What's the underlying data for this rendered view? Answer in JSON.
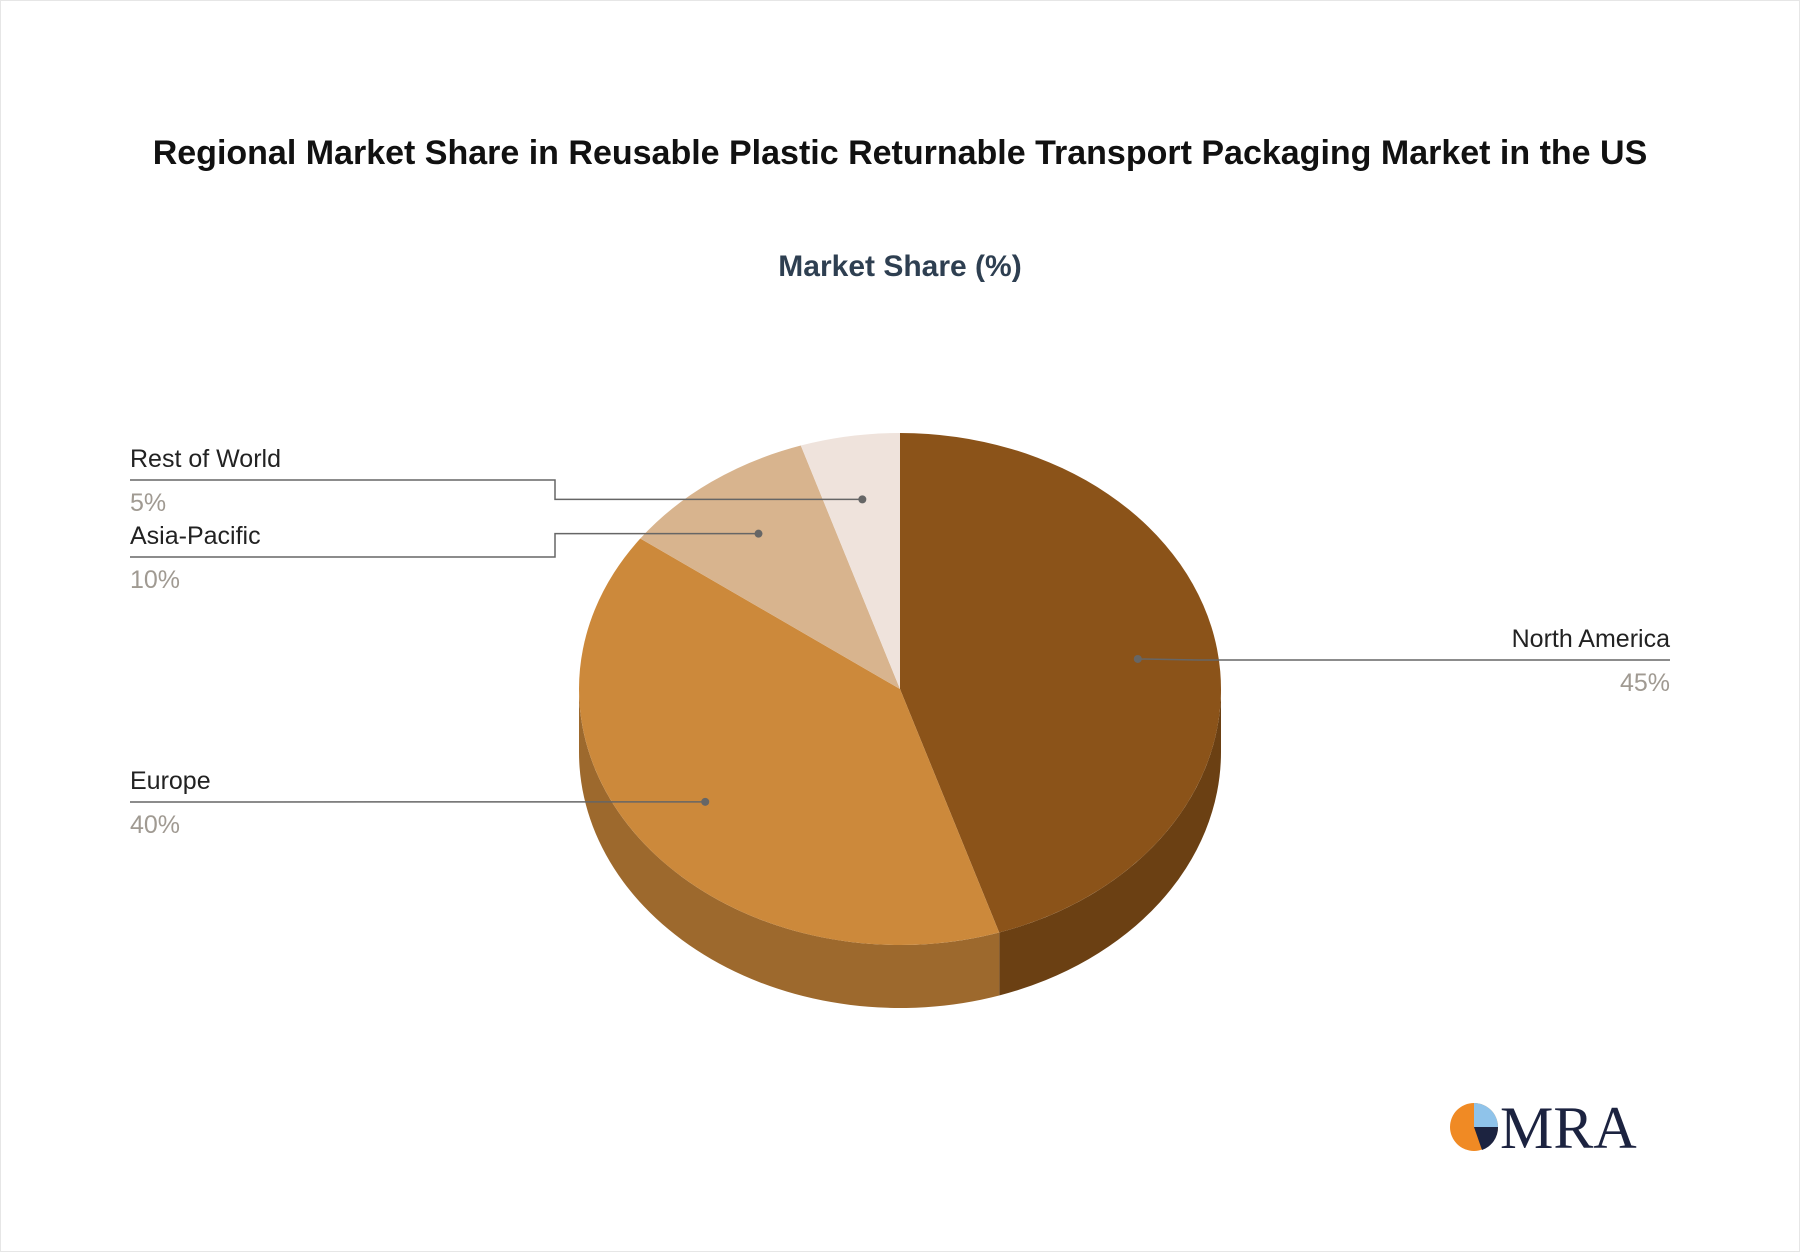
{
  "chart_data": {
    "type": "pie",
    "title": "Regional Market Share in Reusable Plastic Returnable Transport Packaging Market in the US",
    "subtitle": "Market Share (%)",
    "categories": [
      "North America",
      "Europe",
      "Asia-Pacific",
      "Rest of World"
    ],
    "values": [
      45,
      40,
      10,
      5
    ],
    "value_labels": [
      "45%",
      "40%",
      "10%",
      "5%"
    ],
    "colors": [
      "#8b5319",
      "#cc893b",
      "#d8b48e",
      "#efe3dc"
    ]
  },
  "logo": {
    "text": "MRA"
  }
}
